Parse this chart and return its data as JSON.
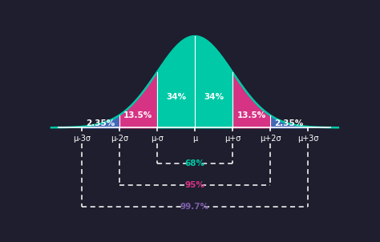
{
  "bg_color": "#1e1e2e",
  "curve_color": "#00c9a7",
  "curve_linewidth": 1.8,
  "fill_colors": {
    "inner": "#00c9a7",
    "middle": "#d63384",
    "outer": "#4169b8"
  },
  "sigma_positions": [
    -3,
    -2,
    -1,
    0,
    1,
    2,
    3
  ],
  "tick_labels": [
    "μ-3σ",
    "μ-2σ",
    "μ-σ",
    "μ",
    "μ+σ",
    "μ+2σ",
    "μ+3σ"
  ],
  "bracket_colors": {
    "68": "#00c9a7",
    "95": "#d63384",
    "997": "#7b5ea7"
  },
  "text_color": "#ffffff",
  "pct_fontsize": 7.5,
  "tick_fontsize": 7.0,
  "bracket_label_fontsize": 7.5
}
